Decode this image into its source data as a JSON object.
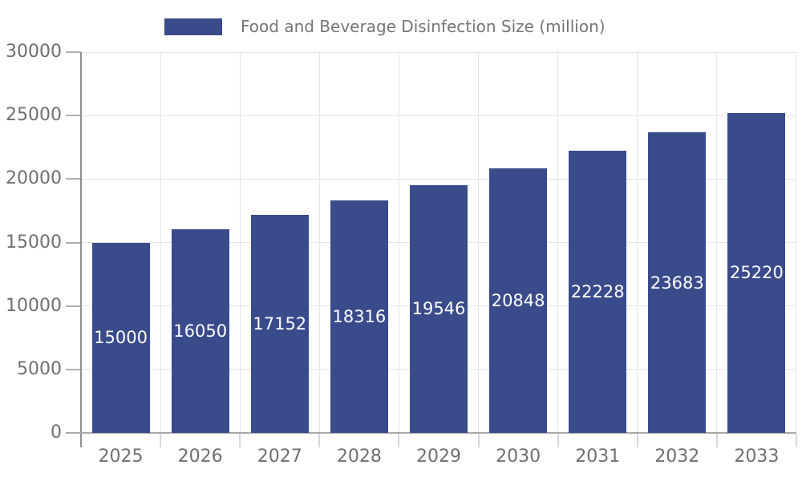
{
  "legend": {
    "label": "Food and Beverage Disinfection Size (million)"
  },
  "chart_data": {
    "type": "bar",
    "title": "Food and Beverage Disinfection Size (million)",
    "categories": [
      "2025",
      "2026",
      "2027",
      "2028",
      "2029",
      "2030",
      "2031",
      "2032",
      "2033"
    ],
    "series": [
      {
        "name": "Food and Beverage Disinfection Size (million)",
        "values": [
          15000,
          16050,
          17152,
          18316,
          19546,
          20848,
          22228,
          23683,
          25220
        ]
      }
    ],
    "value_labels": [
      "15000",
      "16050",
      "17152",
      "18316",
      "19546",
      "20848",
      "22228",
      "23683",
      "25220"
    ],
    "xlabel": "",
    "ylabel": "",
    "ylim": [
      0,
      30000
    ],
    "yticks": [
      0,
      5000,
      10000,
      15000,
      20000,
      25000,
      30000
    ],
    "grid": true,
    "legend_position": "top",
    "value_label_position": "inside-center",
    "colors": {
      "bar": "#3a4b8c",
      "grid": "#e5e5e5",
      "y_axis_line": "#8f8f8f",
      "x_axis_line": "#a8a8a8",
      "y_tick": "#b0b0b0",
      "x_boundary_tick": "#d7d7d7",
      "tick_label": "#6f6f6f",
      "value_label": "#ffffff",
      "legend_text": "#757575",
      "background": "#ffffff"
    }
  }
}
